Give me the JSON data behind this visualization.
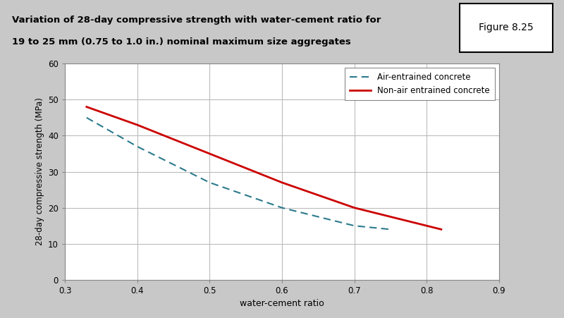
{
  "title_line1": "Variation of 28-day compressive strength with water-cement ratio for",
  "title_line2": "19 to 25 mm (0.75 to 1.0 in.) nominal maximum size aggregates",
  "figure_label": "Figure 8.25",
  "xlabel": "water-cement ratio",
  "ylabel": "28-day compressive strength (MPa)",
  "xlim": [
    0.3,
    0.9
  ],
  "ylim": [
    0,
    60
  ],
  "xticks": [
    0.3,
    0.4,
    0.5,
    0.6,
    0.7,
    0.8,
    0.9
  ],
  "yticks": [
    0,
    10,
    20,
    30,
    40,
    50,
    60
  ],
  "air_entrained_x": [
    0.33,
    0.4,
    0.5,
    0.6,
    0.7,
    0.75
  ],
  "air_entrained_y": [
    45,
    37,
    27,
    20,
    15,
    14
  ],
  "non_air_x": [
    0.33,
    0.4,
    0.5,
    0.6,
    0.7,
    0.8,
    0.82
  ],
  "non_air_y": [
    48,
    43,
    35,
    27,
    20,
    15,
    14
  ],
  "air_color": "#2B7A8C",
  "non_air_color": "#CC0000",
  "title_bg_color": "#8CB84E",
  "title_text_color": "#000000",
  "outer_bg_color": "#C8C8C8",
  "plot_bg_color": "#E8E8E8",
  "grid_color": "#BBBBBB",
  "legend_label_air": "Air-entrained concrete",
  "legend_label_non_air": "Non-air entrained concrete"
}
